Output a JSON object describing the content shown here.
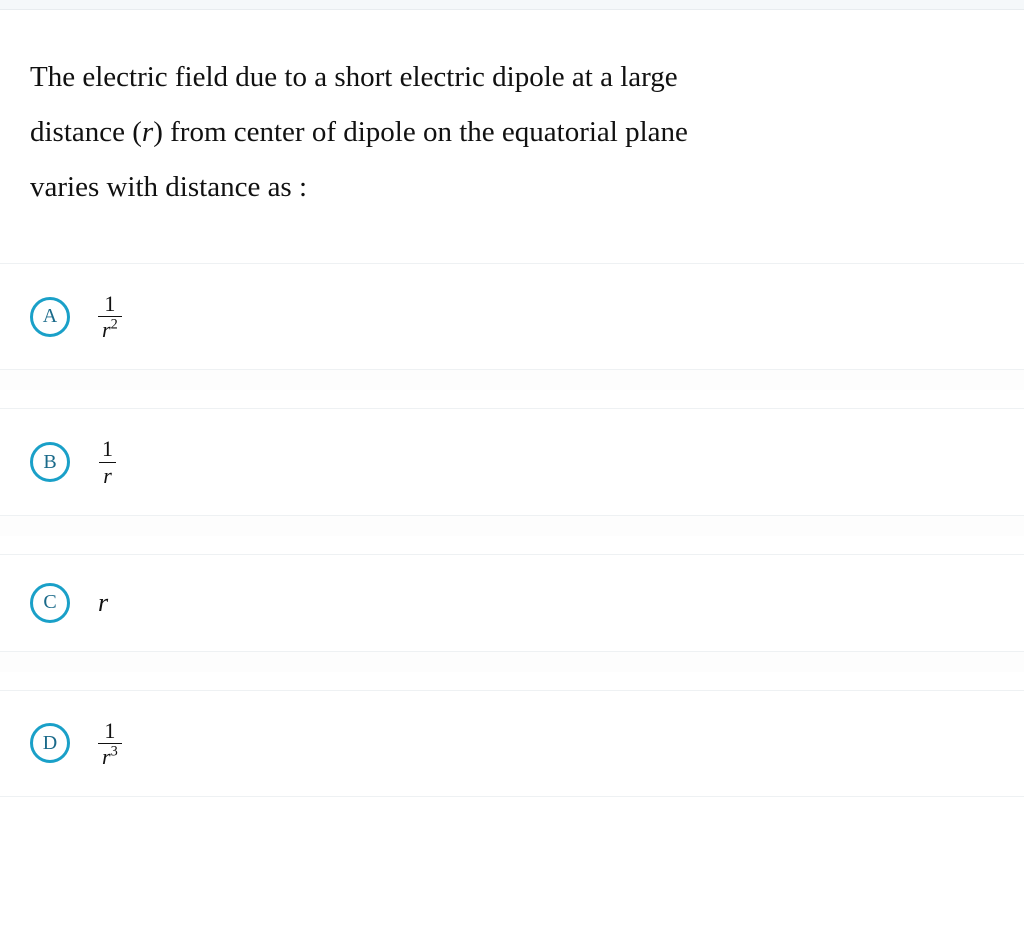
{
  "question": {
    "line1": "The electric field due to a short electric dipole at a large",
    "line2_pre": "distance (",
    "line2_var": "r",
    "line2_post": ") from center of dipole on the equatorial plane",
    "line3": "varies with distance as :"
  },
  "options": {
    "a": {
      "letter": "A",
      "frac_num": "1",
      "frac_den_base": "r",
      "frac_den_sup": "2"
    },
    "b": {
      "letter": "B",
      "frac_num": "1",
      "frac_den_base": "r",
      "frac_den_sup": ""
    },
    "c": {
      "letter": "C",
      "plain": "r"
    },
    "d": {
      "letter": "D",
      "frac_num": "1",
      "frac_den_base": "r",
      "frac_den_sup": "3"
    }
  },
  "style": {
    "option_border_color": "#1aa0c8",
    "text_color": "#111111",
    "background": "#ffffff"
  }
}
